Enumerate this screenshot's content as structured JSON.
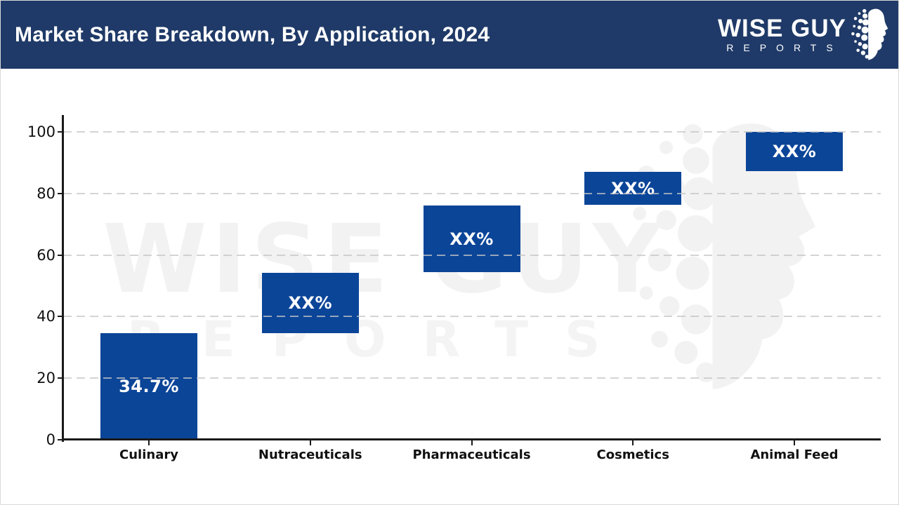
{
  "header": {
    "title": "Market Share Breakdown, By Application, 2024",
    "logo": {
      "line1": "WISE GUY",
      "line2": "REPORTS"
    }
  },
  "watermark": {
    "line1": "WISE GUY",
    "line2": "REPORTS"
  },
  "colors": {
    "header_bg": "#1f3a68",
    "bar": "#0b4598",
    "grid": "#c5c5c5",
    "axis": "#1a1a1a",
    "label_on_bar": "#ffffff"
  },
  "chart_data": {
    "type": "bar",
    "subtype": "waterfall",
    "title": "Market Share Breakdown, By Application, 2024",
    "categories": [
      "Culinary",
      "Nutraceuticals",
      "Pharmaceuticals",
      "Cosmetics",
      "Animal Feed"
    ],
    "segments": [
      {
        "category": "Culinary",
        "start": 0,
        "end": 34.7,
        "label": "34.7%"
      },
      {
        "category": "Nutraceuticals",
        "start": 34.7,
        "end": 54.3,
        "label": "XX%"
      },
      {
        "category": "Pharmaceuticals",
        "start": 54.4,
        "end": 76.1,
        "label": "XX%"
      },
      {
        "category": "Cosmetics",
        "start": 76.3,
        "end": 87.0,
        "label": "XX%"
      },
      {
        "category": "Animal Feed",
        "start": 87.2,
        "end": 100,
        "label": "XX%"
      }
    ],
    "yticks": [
      0,
      20,
      40,
      60,
      80,
      100
    ],
    "ylim": [
      0,
      105
    ],
    "xlabel": "",
    "ylabel": "",
    "grid": "horizontal-dashed",
    "legend": "none",
    "bar_labels": [
      "34.7%",
      "XX%",
      "XX%",
      "XX%",
      "XX%"
    ]
  }
}
